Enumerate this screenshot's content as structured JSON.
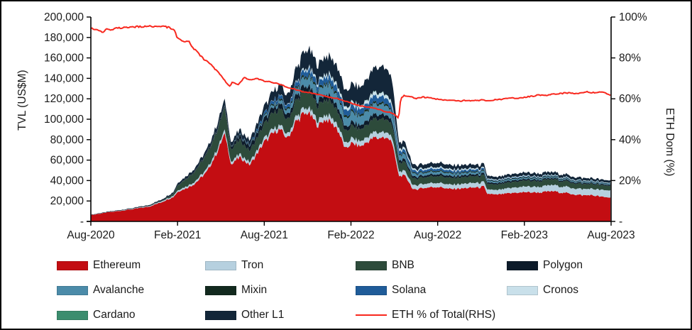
{
  "chart_data": {
    "type": "area",
    "stacked": true,
    "left_axis": {
      "label": "TVL (US$M)",
      "min": 0,
      "max": 200000,
      "tick_labels_top_to_bottom": [
        "200,000",
        "180,000",
        "160,000",
        "140,000",
        "120,000",
        "100,000",
        "80,000",
        "60,000",
        "40,000",
        "20,000",
        "-"
      ]
    },
    "right_axis": {
      "label": "ETH Dom (%)",
      "min": 0,
      "max": 100,
      "tick_labels_top_to_bottom": [
        "100%",
        "80%",
        "60%",
        "40%",
        "20%",
        "-"
      ]
    },
    "x_axis": {
      "tick_labels": [
        "Aug-2020",
        "Feb-2021",
        "Aug-2021",
        "Feb-2022",
        "Aug-2022",
        "Feb-2023",
        "Aug-2023"
      ],
      "tick_positions_months": [
        0,
        6,
        12,
        18,
        24,
        30,
        36
      ],
      "range_months": [
        0,
        36
      ]
    },
    "x_months": [
      0,
      1,
      2,
      3,
      4,
      5,
      5.7,
      6,
      7,
      8,
      8.7,
      9.3,
      9.7,
      10.3,
      11,
      12,
      13,
      13.6,
      14.3,
      15,
      15.7,
      16.3,
      17,
      17.6,
      18,
      18.7,
      19.5,
      20.1,
      20.8,
      21.3,
      21.8,
      22.3,
      23,
      24,
      24.7,
      25.5,
      26.5,
      27.2,
      27.4,
      28,
      29,
      30,
      31,
      31.5,
      32,
      33,
      34,
      34.5,
      35,
      36
    ],
    "series": [
      {
        "name": "Ethereum",
        "color": "#c30d12",
        "values_usdm": [
          6200,
          8500,
          10300,
          12300,
          14500,
          19500,
          24000,
          29000,
          35000,
          48000,
          66000,
          86000,
          55000,
          63000,
          55000,
          78000,
          90000,
          82000,
          100000,
          107000,
          94000,
          100000,
          93000,
          70000,
          77000,
          73000,
          82000,
          82000,
          80000,
          45000,
          44000,
          31000,
          33000,
          34000,
          32000,
          32000,
          33000,
          34000,
          27000,
          26000,
          27500,
          28500,
          28000,
          29000,
          29500,
          27500,
          25500,
          26000,
          25000,
          23000
        ]
      },
      {
        "name": "Tron",
        "color": "#b6d0df",
        "values_usdm": [
          100,
          200,
          300,
          400,
          600,
          1000,
          1200,
          1500,
          2000,
          2500,
          3000,
          3500,
          2500,
          3000,
          2800,
          3500,
          4000,
          3800,
          4500,
          5000,
          4800,
          5000,
          5000,
          4800,
          5000,
          4800,
          5200,
          5500,
          5000,
          4500,
          4200,
          4000,
          4000,
          4200,
          4200,
          4300,
          4500,
          4400,
          4300,
          4200,
          5000,
          5500,
          5500,
          5700,
          6000,
          6000,
          6000,
          6200,
          6500,
          7000
        ]
      },
      {
        "name": "BNB",
        "color": "#2d4b3b",
        "values_usdm": [
          0,
          0,
          50,
          100,
          200,
          500,
          2000,
          5000,
          9000,
          14000,
          18000,
          21000,
          12000,
          14000,
          11000,
          14000,
          16000,
          14000,
          16000,
          16000,
          14500,
          15000,
          14000,
          11500,
          12000,
          11500,
          13000,
          13000,
          12000,
          8500,
          8300,
          6500,
          6500,
          6800,
          6600,
          6500,
          6500,
          6300,
          5500,
          5200,
          5500,
          5800,
          5500,
          5600,
          5500,
          5200,
          4800,
          4700,
          4600,
          4400
        ]
      },
      {
        "name": "Polygon",
        "color": "#0d1b2a",
        "values_usdm": [
          0,
          0,
          0,
          0,
          0,
          100,
          150,
          200,
          500,
          1000,
          1200,
          1500,
          2500,
          4000,
          4500,
          5000,
          5000,
          4800,
          5000,
          5500,
          5200,
          5000,
          4800,
          4000,
          4000,
          4000,
          4500,
          4500,
          4000,
          2800,
          2600,
          1900,
          1800,
          1900,
          1850,
          1800,
          1800,
          1800,
          1500,
          1400,
          1500,
          1500,
          1400,
          1400,
          1300,
          1200,
          1100,
          1050,
          1000,
          1000
        ]
      },
      {
        "name": "Avalanche",
        "color": "#4b8ba9",
        "values_usdm": [
          0,
          0,
          0,
          0,
          0,
          0,
          0,
          0,
          0,
          100,
          150,
          200,
          200,
          300,
          400,
          1500,
          3000,
          4000,
          6000,
          8500,
          9000,
          10000,
          9500,
          8000,
          9000,
          8500,
          10000,
          10000,
          8500,
          5000,
          4500,
          2800,
          2500,
          2500,
          2400,
          2200,
          2000,
          1900,
          1500,
          1300,
          1300,
          1200,
          1100,
          1100,
          1000,
          900,
          800,
          780,
          750,
          700
        ]
      },
      {
        "name": "Mixin",
        "color": "#12291e",
        "values_usdm": [
          0,
          0,
          0,
          0,
          0,
          0,
          0,
          0,
          100,
          300,
          400,
          500,
          400,
          500,
          600,
          1000,
          1500,
          1500,
          1800,
          2000,
          2000,
          2000,
          2000,
          1800,
          1800,
          1800,
          1800,
          1800,
          1600,
          1200,
          1100,
          900,
          950,
          1000,
          950,
          900,
          900,
          900,
          700,
          700,
          750,
          800,
          780,
          760,
          700,
          600,
          550,
          520,
          500,
          400
        ]
      },
      {
        "name": "Solana",
        "color": "#1f5c99",
        "values_usdm": [
          0,
          0,
          0,
          0,
          0,
          0,
          0,
          0,
          0,
          0,
          0,
          100,
          200,
          600,
          800,
          2500,
          3500,
          3000,
          4500,
          5500,
          5500,
          6000,
          6500,
          5500,
          5500,
          5500,
          6000,
          6000,
          5000,
          3200,
          3000,
          2200,
          2100,
          2100,
          2000,
          1900,
          1800,
          1700,
          700,
          550,
          600,
          650,
          600,
          620,
          600,
          550,
          500,
          500,
          500,
          450
        ]
      },
      {
        "name": "Cronos",
        "color": "#c9e0ea",
        "values_usdm": [
          0,
          0,
          0,
          0,
          0,
          0,
          0,
          0,
          0,
          0,
          0,
          0,
          0,
          0,
          0,
          100,
          300,
          500,
          1000,
          2000,
          2200,
          2500,
          3000,
          2800,
          3000,
          3000,
          3500,
          3300,
          3000,
          2200,
          2000,
          1500,
          1400,
          1400,
          1350,
          1300,
          1200,
          1100,
          800,
          700,
          700,
          700,
          600,
          600,
          600,
          550,
          500,
          480,
          450,
          400
        ]
      },
      {
        "name": "Cardano",
        "color": "#3b8d6e",
        "values_usdm": [
          0,
          0,
          0,
          0,
          0,
          0,
          0,
          0,
          0,
          0,
          0,
          0,
          0,
          0,
          0,
          0,
          50,
          60,
          80,
          100,
          120,
          150,
          200,
          200,
          250,
          260,
          300,
          300,
          250,
          200,
          170,
          120,
          110,
          100,
          90,
          90,
          80,
          80,
          60,
          60,
          70,
          80,
          100,
          110,
          150,
          160,
          160,
          160,
          160,
          160
        ]
      },
      {
        "name": "Other L1",
        "color": "#132639",
        "values_usdm": [
          300,
          400,
          500,
          600,
          800,
          1200,
          1500,
          2000,
          2500,
          3500,
          4500,
          6500,
          3500,
          4500,
          4200,
          7000,
          10000,
          10000,
          14000,
          18000,
          16000,
          17000,
          18000,
          16000,
          17500,
          18000,
          23000,
          26000,
          24000,
          6000,
          5500,
          4000,
          4000,
          4200,
          4000,
          3800,
          3600,
          3500,
          2800,
          2600,
          2800,
          3000,
          2800,
          2800,
          2800,
          2600,
          2400,
          2300,
          2300,
          2200
        ]
      }
    ],
    "line_series": {
      "name": "ETH % of Total(RHS)",
      "color": "#f8281e",
      "axis": "right",
      "x_months": [
        0,
        0.4,
        0.8,
        1.1,
        1.4,
        1.8,
        2.2,
        2.6,
        3,
        3.5,
        4,
        4.5,
        5,
        5.4,
        5.8,
        6,
        6.4,
        6.8,
        7,
        7.4,
        7.8,
        8.2,
        8.6,
        9,
        9.3,
        9.6,
        9.8,
        10.2,
        10.6,
        11,
        11.5,
        12,
        12.5,
        13,
        13.5,
        14,
        14.5,
        15,
        15.5,
        16,
        16.5,
        17,
        17.5,
        18,
        18.5,
        19,
        19.5,
        20,
        20.4,
        20.8,
        21.1,
        21.3,
        21.45,
        21.7,
        22,
        22.5,
        23,
        23.5,
        24,
        24.5,
        25,
        25.5,
        26,
        26.5,
        27,
        27.5,
        28,
        28.5,
        29,
        29.5,
        30,
        30.5,
        31,
        31.5,
        32,
        32.5,
        33,
        33.5,
        34,
        34.3,
        34.6,
        35,
        35.4,
        35.7,
        36
      ],
      "values_pct": [
        94.5,
        93.8,
        92.5,
        94.2,
        93.3,
        94.6,
        94.8,
        95.1,
        95.2,
        95.3,
        95.5,
        95.3,
        95.6,
        94.8,
        93.4,
        89.5,
        87.8,
        88.0,
        85.5,
        82.5,
        79.5,
        77.5,
        74.5,
        71.5,
        68.5,
        66.3,
        68.0,
        67.2,
        70.2,
        69.4,
        69.8,
        68.6,
        68.2,
        67.2,
        65.8,
        64.8,
        63.8,
        63.2,
        62.3,
        61.8,
        60.8,
        60.2,
        59.2,
        57.8,
        56.8,
        56.2,
        55.6,
        54.6,
        53.8,
        53.2,
        51.8,
        50.6,
        60.6,
        61.6,
        61.2,
        60.2,
        60.8,
        60.4,
        59.8,
        59.4,
        59.2,
        58.9,
        59.3,
        59.0,
        59.4,
        59.0,
        59.5,
        59.8,
        60.4,
        60.2,
        60.8,
        61.2,
        61.8,
        61.5,
        62.3,
        62.6,
        62.9,
        62.5,
        63.0,
        63.4,
        63.0,
        63.1,
        63.3,
        62.6,
        61.8
      ]
    }
  },
  "legend": {
    "items": [
      {
        "label": "Ethereum",
        "color": "#c30d12",
        "type": "box"
      },
      {
        "label": "Tron",
        "color": "#b6d0df",
        "type": "box"
      },
      {
        "label": "BNB",
        "color": "#2d4b3b",
        "type": "box"
      },
      {
        "label": "Polygon",
        "color": "#0d1b2a",
        "type": "box"
      },
      {
        "label": "Avalanche",
        "color": "#4b8ba9",
        "type": "box"
      },
      {
        "label": "Mixin",
        "color": "#12291e",
        "type": "box"
      },
      {
        "label": "Solana",
        "color": "#1f5c99",
        "type": "box"
      },
      {
        "label": "Cronos",
        "color": "#c9e0ea",
        "type": "box"
      },
      {
        "label": "Cardano",
        "color": "#3b8d6e",
        "type": "box"
      },
      {
        "label": "Other L1",
        "color": "#132639",
        "type": "box"
      },
      {
        "label": "ETH % of Total(RHS)",
        "color": "#f8281e",
        "type": "line"
      }
    ]
  }
}
